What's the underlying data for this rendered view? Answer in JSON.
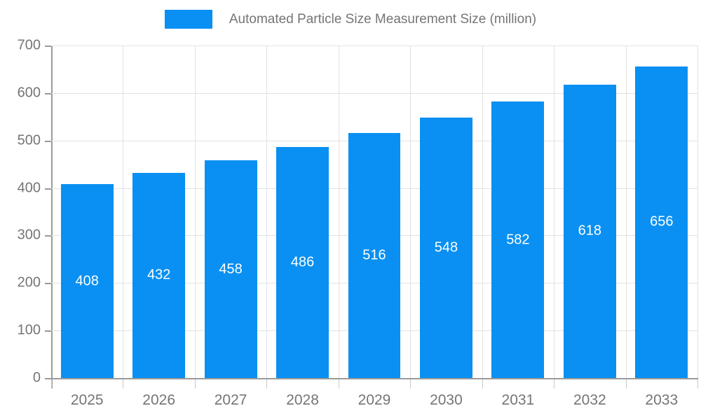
{
  "legend": {
    "label": "Automated Particle Size Measurement Size (million)"
  },
  "colors": {
    "bar": "#0990f2",
    "value_label": "#ffffff",
    "axis_line": "#9a9a9a",
    "gridline": "#e2e2e2",
    "tick_text": "#757575",
    "background": "#ffffff"
  },
  "chart_data": {
    "type": "bar",
    "title": "Automated Particle Size Measurement Size (million)",
    "categories": [
      "2025",
      "2026",
      "2027",
      "2028",
      "2029",
      "2030",
      "2031",
      "2032",
      "2033"
    ],
    "values": [
      408,
      432,
      458,
      486,
      516,
      548,
      582,
      618,
      656
    ],
    "series_name": "Automated Particle Size Measurement Size (million)",
    "xlabel": "",
    "ylabel": "",
    "ylim": [
      0,
      700
    ],
    "ytick_step": 100,
    "yticks": [
      0,
      100,
      200,
      300,
      400,
      500,
      600,
      700
    ],
    "grid": true,
    "legend_position": "top",
    "value_labels": "inside-center"
  }
}
